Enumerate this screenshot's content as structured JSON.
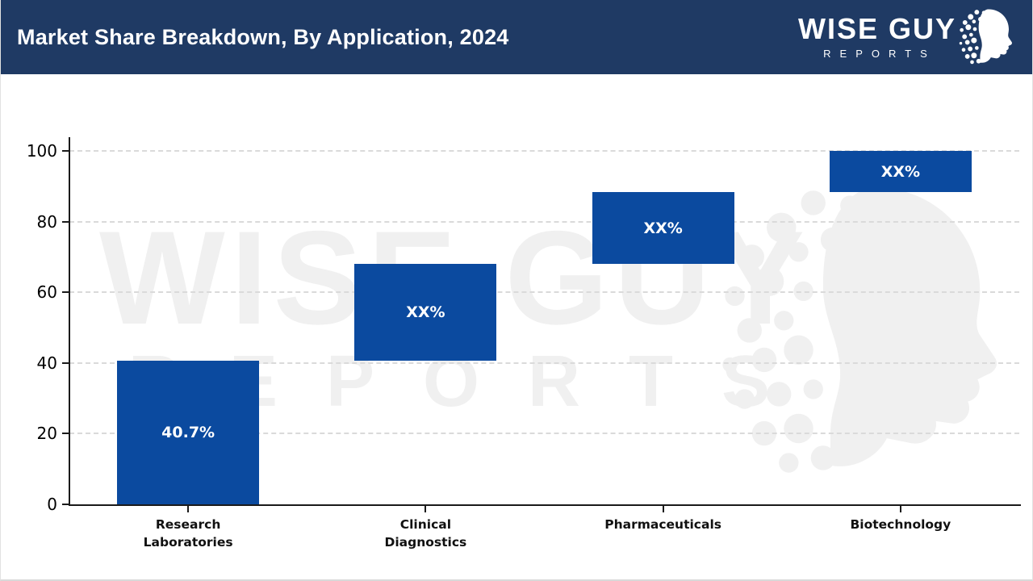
{
  "header": {
    "title": "Market Share Breakdown, By Application, 2024",
    "logo": {
      "line1": "WISE GUY",
      "line2": "REPORTS"
    }
  },
  "watermark": {
    "line1": "WISE GUY",
    "line2": "REPORTS"
  },
  "chart_data": {
    "type": "bar",
    "subtype": "waterfall",
    "title": "Market Share Breakdown, By Application, 2024",
    "xlabel": "",
    "ylabel": "",
    "ylim": [
      0,
      100
    ],
    "yticks": [
      0,
      20,
      40,
      60,
      80,
      100
    ],
    "grid": "horizontal-dashed",
    "legend": "none",
    "bar_color": "#0b4a9f",
    "label_color": "#ffffff",
    "categories": [
      {
        "lines": [
          "Research",
          "Laboratories"
        ]
      },
      {
        "lines": [
          "Clinical",
          "Diagnostics"
        ]
      },
      {
        "lines": [
          "Pharmaceuticals"
        ]
      },
      {
        "lines": [
          "Biotechnology"
        ]
      }
    ],
    "segments": [
      {
        "category": "Research Laboratories",
        "start": 0,
        "end": 40.7,
        "value": 40.7,
        "label": "40.7%"
      },
      {
        "category": "Clinical Diagnostics",
        "start": 40.7,
        "end": 68,
        "value": 27.3,
        "label": "XX%"
      },
      {
        "category": "Pharmaceuticals",
        "start": 68,
        "end": 88.3,
        "value": 20.3,
        "label": "XX%"
      },
      {
        "category": "Biotechnology",
        "start": 88.3,
        "end": 100,
        "value": 11.7,
        "label": "XX%"
      }
    ]
  }
}
